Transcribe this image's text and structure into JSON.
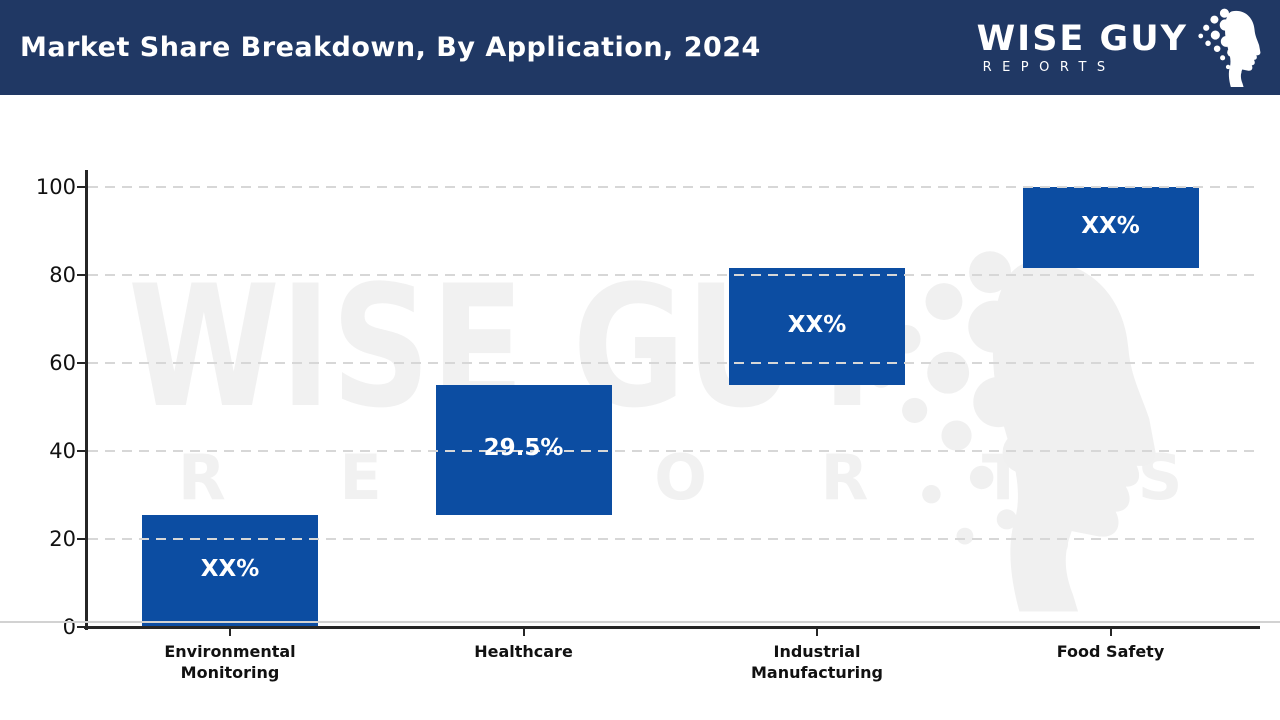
{
  "header": {
    "title": "Market Share Breakdown, By Application, 2024",
    "logo": {
      "line1": "WISE GUY",
      "line2": "REPORTS",
      "icon": "head-of-dots-icon"
    }
  },
  "watermark": {
    "line1": "WISE GUY",
    "line2": "R E P O R T S",
    "icon": "head-of-dots-watermark"
  },
  "colors": {
    "header_bg": "#203864",
    "bar": "#0C4DA2",
    "grid": "#D7D7D7",
    "axis": "#262626",
    "tick_label": "#111111",
    "bar_label": "#FFFFFF",
    "watermark": "#F1F1F1",
    "title_text": "#FFFFFF"
  },
  "chart_data": {
    "type": "waterfall",
    "title": "Market Share Breakdown, By Application, 2024",
    "categories": [
      "Environmental\nMonitoring",
      "Healthcare",
      "Industrial\nManufacturing",
      "Food Safety"
    ],
    "segments": [
      {
        "category": "Environmental Monitoring",
        "start": 0,
        "end": 25.5,
        "label": "XX%"
      },
      {
        "category": "Healthcare",
        "start": 25.5,
        "end": 55,
        "label": "29.5%"
      },
      {
        "category": "Industrial Manufacturing",
        "start": 55,
        "end": 81.5,
        "label": "XX%"
      },
      {
        "category": "Food Safety",
        "start": 81.5,
        "end": 100,
        "label": "XX%"
      }
    ],
    "ylim": [
      0,
      100
    ],
    "yticks": [
      0,
      20,
      40,
      60,
      80,
      100
    ],
    "xlabel": "",
    "ylabel": "",
    "legend": "none",
    "grid": "horizontal dashed, drawn over bars"
  }
}
